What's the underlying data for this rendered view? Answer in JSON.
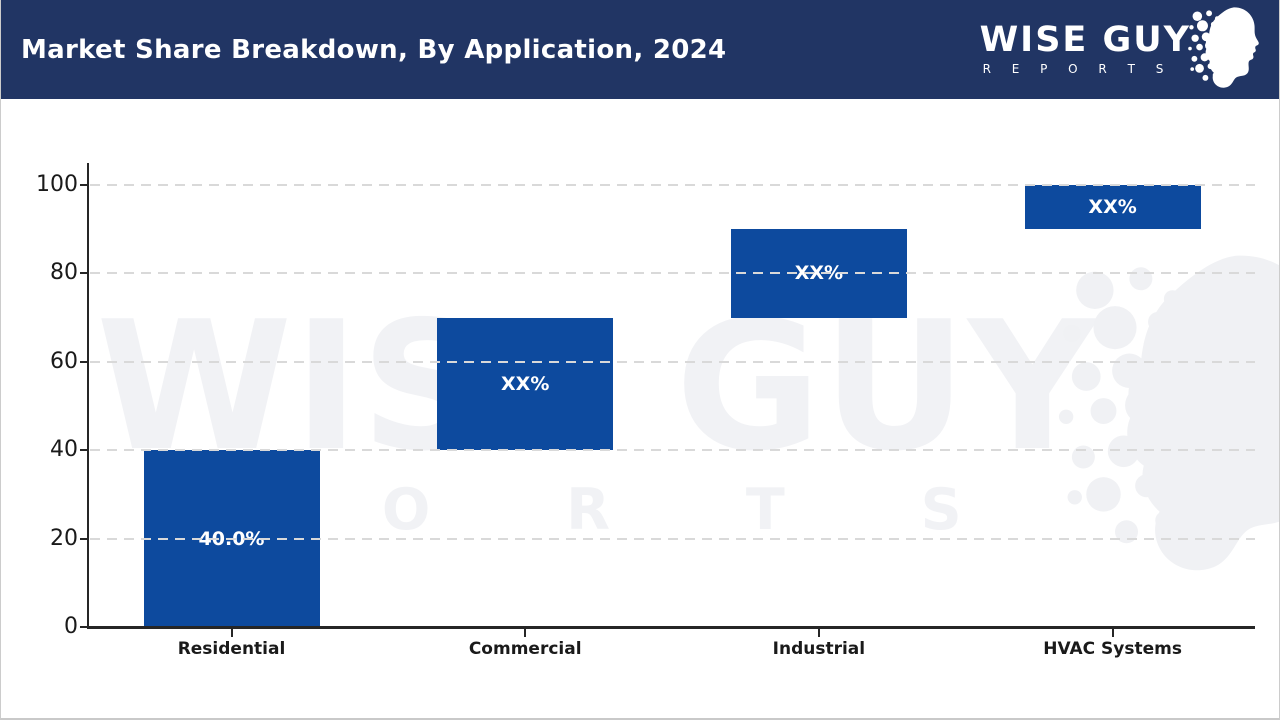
{
  "header": {
    "title": "Market Share Breakdown, By Application, 2024",
    "brand": {
      "line1": "WISE GUY",
      "line2": "R E P O R T S"
    }
  },
  "watermark": {
    "line1": "WISE GUY",
    "line2": "P O R T S"
  },
  "colors": {
    "header_bg": "#213564",
    "bar": "#0d4a9e",
    "grid": "#d9d9d9",
    "axis": "#262626",
    "tick_text": "#1a1a1a",
    "bar_label_text": "#ffffff",
    "watermark_gray": "#f1f2f5",
    "page_border": "#cccccc"
  },
  "chart_data": {
    "type": "bar",
    "variant": "waterfall",
    "title": "Market Share Breakdown, By Application, 2024",
    "categories": [
      "Residential",
      "Commercial",
      "Industrial",
      "HVAC Systems"
    ],
    "segments": [
      {
        "category": "Residential",
        "start": 0,
        "end": 40,
        "value_pct": 40,
        "label": "40.0%"
      },
      {
        "category": "Commercial",
        "start": 40,
        "end": 70,
        "value_pct": 30,
        "label": "XX%"
      },
      {
        "category": "Industrial",
        "start": 70,
        "end": 90,
        "value_pct": 20,
        "label": "XX%"
      },
      {
        "category": "HVAC Systems",
        "start": 90,
        "end": 100,
        "value_pct": 10,
        "label": "XX%"
      }
    ],
    "yticks": [
      0,
      20,
      40,
      60,
      80,
      100
    ],
    "ylim": [
      0,
      105
    ],
    "xlabel": "",
    "ylabel": "",
    "grid": {
      "horizontal": true,
      "style": "dashed"
    },
    "legend": "none",
    "bar_color": "#0d4a9e"
  }
}
